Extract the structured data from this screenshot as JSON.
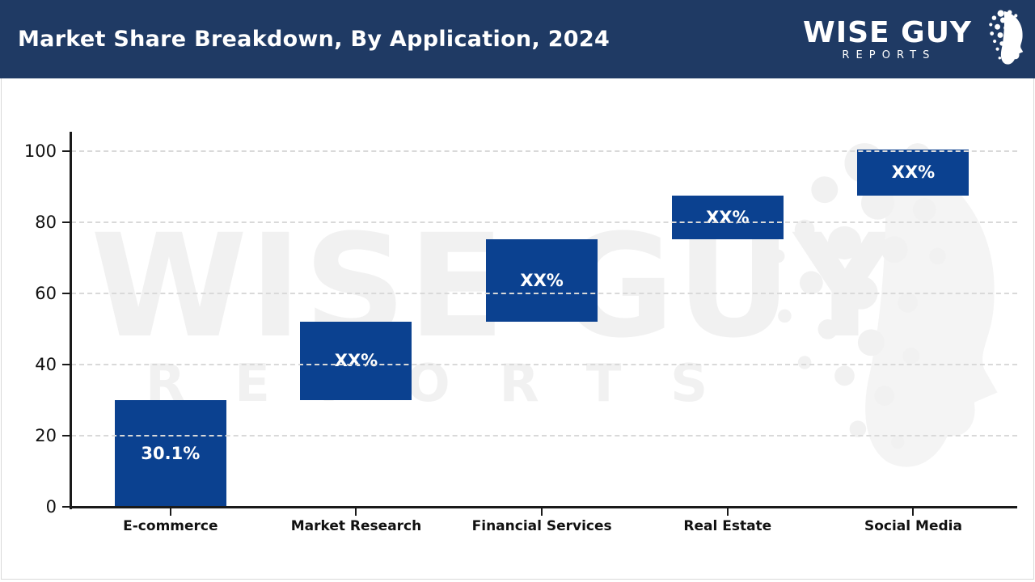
{
  "header": {
    "title": "Market Share Breakdown, By Application, 2024",
    "logo": {
      "line1": "WISE GUY",
      "line2": "REPORTS"
    }
  },
  "watermark": {
    "line1": "WISE GUY",
    "line2": "REPORTS"
  },
  "colors": {
    "header_bg": "#1f3a64",
    "bar": "#0b4190",
    "bar_label": "#ffffff",
    "grid": "#d9d9d9",
    "axis": "#1a1a1a",
    "watermark": "#f1f1f1"
  },
  "chart_data": {
    "type": "bar",
    "variant": "floating-waterfall",
    "title": "Market Share Breakdown, By Application, 2024",
    "categories": [
      "E-commerce",
      "Market Research",
      "Financial Services",
      "Real Estate",
      "Social Media"
    ],
    "bars": [
      {
        "category": "E-commerce",
        "start": 0,
        "end": 30.1,
        "label": "30.1%"
      },
      {
        "category": "Market Research",
        "start": 30.1,
        "end": 52.0,
        "label": "XX%"
      },
      {
        "category": "Financial Services",
        "start": 52.0,
        "end": 75.2,
        "label": "XX%"
      },
      {
        "category": "Real Estate",
        "start": 75.2,
        "end": 87.6,
        "label": "XX%"
      },
      {
        "category": "Social Media",
        "start": 87.6,
        "end": 100.4,
        "label": "XX%"
      }
    ],
    "yticks": [
      0,
      20,
      40,
      60,
      80,
      100
    ],
    "ylim": [
      0,
      105
    ],
    "xlabel": "",
    "ylabel": "",
    "grid": "horizontal-dashed-over-bars",
    "legend": "none"
  }
}
